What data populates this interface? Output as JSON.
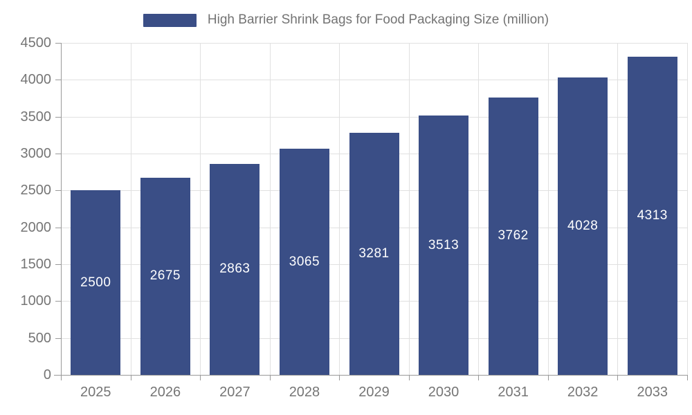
{
  "legend": {
    "label": "High Barrier Shrink Bags for Food Packaging Size (million)"
  },
  "chart_data": {
    "type": "bar",
    "title": "High Barrier Shrink Bags for Food Packaging Size (million)",
    "series_name": "High Barrier Shrink Bags for Food Packaging Size (million)",
    "categories": [
      "2025",
      "2026",
      "2027",
      "2028",
      "2029",
      "2030",
      "2031",
      "2032",
      "2033"
    ],
    "values": [
      2500,
      2675,
      2863,
      3065,
      3281,
      3513,
      3762,
      4028,
      4313
    ],
    "xlabel": "",
    "ylabel": "",
    "ylim": [
      0,
      4500
    ],
    "yticks": [
      0,
      500,
      1000,
      1500,
      2000,
      2500,
      3000,
      3500,
      4000,
      4500
    ],
    "grid": true,
    "legend_position": "top",
    "value_labels": "inside-center",
    "colors": {
      "bar": "#3A4E86",
      "value_label": "#ffffff",
      "grid": "#e0e0e0",
      "axis": "#999999",
      "tick_label": "#757575",
      "legend_text": "#737373",
      "background": "#ffffff"
    }
  }
}
